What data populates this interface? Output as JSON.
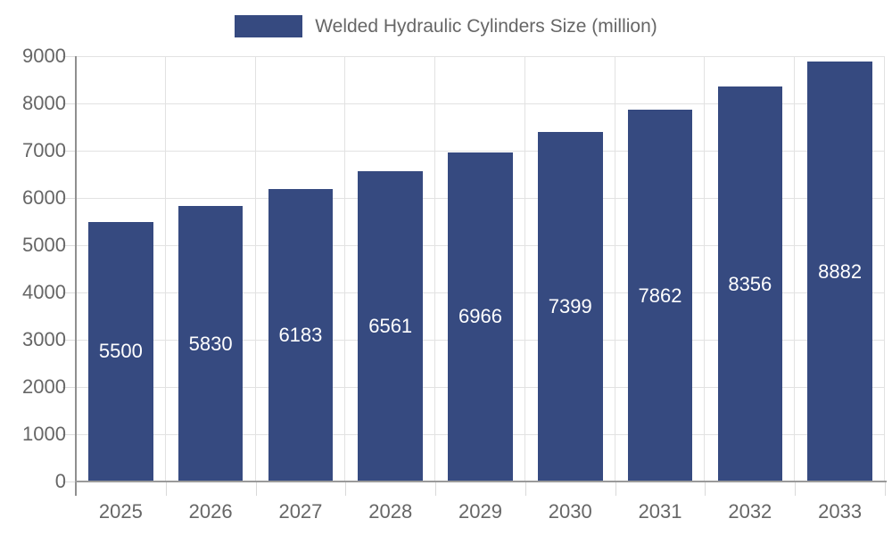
{
  "legend": {
    "label": "Welded Hydraulic Cylinders Size (million)"
  },
  "colors": {
    "bar": "#364A80",
    "bar_label": "#ffffff",
    "grid": "#e2e2e2",
    "axis": "#9a9a9a",
    "tick_text": "#666666",
    "legend_text": "#666666",
    "background": "#ffffff"
  },
  "chart_data": {
    "type": "bar",
    "title": "Welded Hydraulic Cylinders Size (million)",
    "categories": [
      "2025",
      "2026",
      "2027",
      "2028",
      "2029",
      "2030",
      "2031",
      "2032",
      "2033"
    ],
    "values": [
      5500,
      5830,
      6183,
      6561,
      6966,
      7399,
      7862,
      8356,
      8882
    ],
    "bar_value_labels": [
      "5500",
      "5830",
      "6183",
      "6561",
      "6966",
      "7399",
      "7862",
      "8356",
      "8882"
    ],
    "xlabel": "",
    "ylabel": "",
    "ylim": [
      0,
      9000
    ],
    "ytick_step": 1000,
    "ytick_labels": [
      "0",
      "1000",
      "2000",
      "3000",
      "4000",
      "5000",
      "6000",
      "7000",
      "8000",
      "9000"
    ],
    "grid": true,
    "legend_position": "top"
  }
}
